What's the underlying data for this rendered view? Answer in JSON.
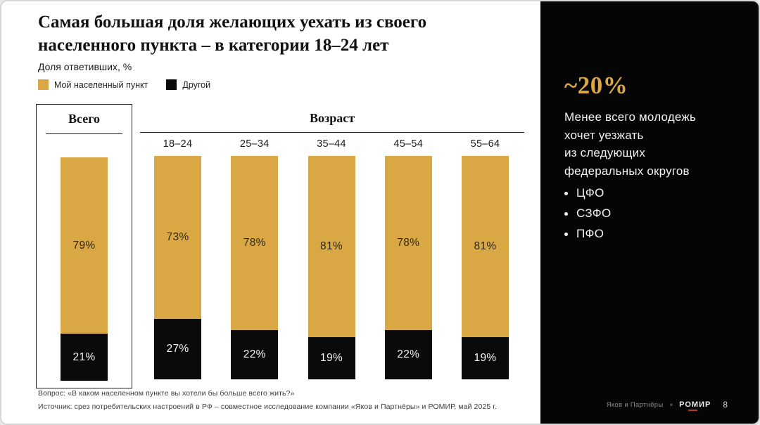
{
  "slide": {
    "title": "Самая большая доля желающих уехать из своего\nнаселенного пункта – в категории 18–24 лет",
    "subtitle": "Доля ответивших, %",
    "footnotes": {
      "question": "Вопрос: «В каком населенном пункте вы хотели бы больше всего жить?»",
      "source": "Источник: срез потребительских настроений в РФ – совместное исследование компании «Яков и Партнёры» и РОМИР, май 2025 г."
    },
    "brand": {
      "left": "Яков и Партнёры",
      "separator": "×",
      "right": "РОМИР"
    },
    "page_number": "8"
  },
  "legend": {
    "items": [
      {
        "label": "Мой населенный пункт",
        "color": "#D9A845"
      },
      {
        "label": "Другой",
        "color": "#0A0A0A"
      }
    ]
  },
  "chart_data": {
    "type": "bar",
    "stacked": true,
    "unit": "%",
    "total_header": "Всего",
    "age_header": "Возраст",
    "categories": [
      "Всего",
      "18–24",
      "25–34",
      "35–44",
      "45–54",
      "55–64"
    ],
    "series": [
      {
        "name": "Мой населенный пункт",
        "color": "#D9A845",
        "label_color": "#2F2713",
        "values": [
          79,
          73,
          78,
          81,
          78,
          81
        ]
      },
      {
        "name": "Другой",
        "color": "#0A0A0A",
        "label_color": "#F4F4F4",
        "values": [
          21,
          27,
          22,
          19,
          22,
          19
        ]
      }
    ],
    "ylim": [
      0,
      100
    ],
    "value_labels": true,
    "legend_position": "top-left"
  },
  "sidebar": {
    "stat": "~20%",
    "text": "Менее всего молодежь\nхочет уезжать\nиз следующих\nфедеральных округов",
    "bullets": [
      "ЦФО",
      "СЗФО",
      "ПФО"
    ]
  }
}
